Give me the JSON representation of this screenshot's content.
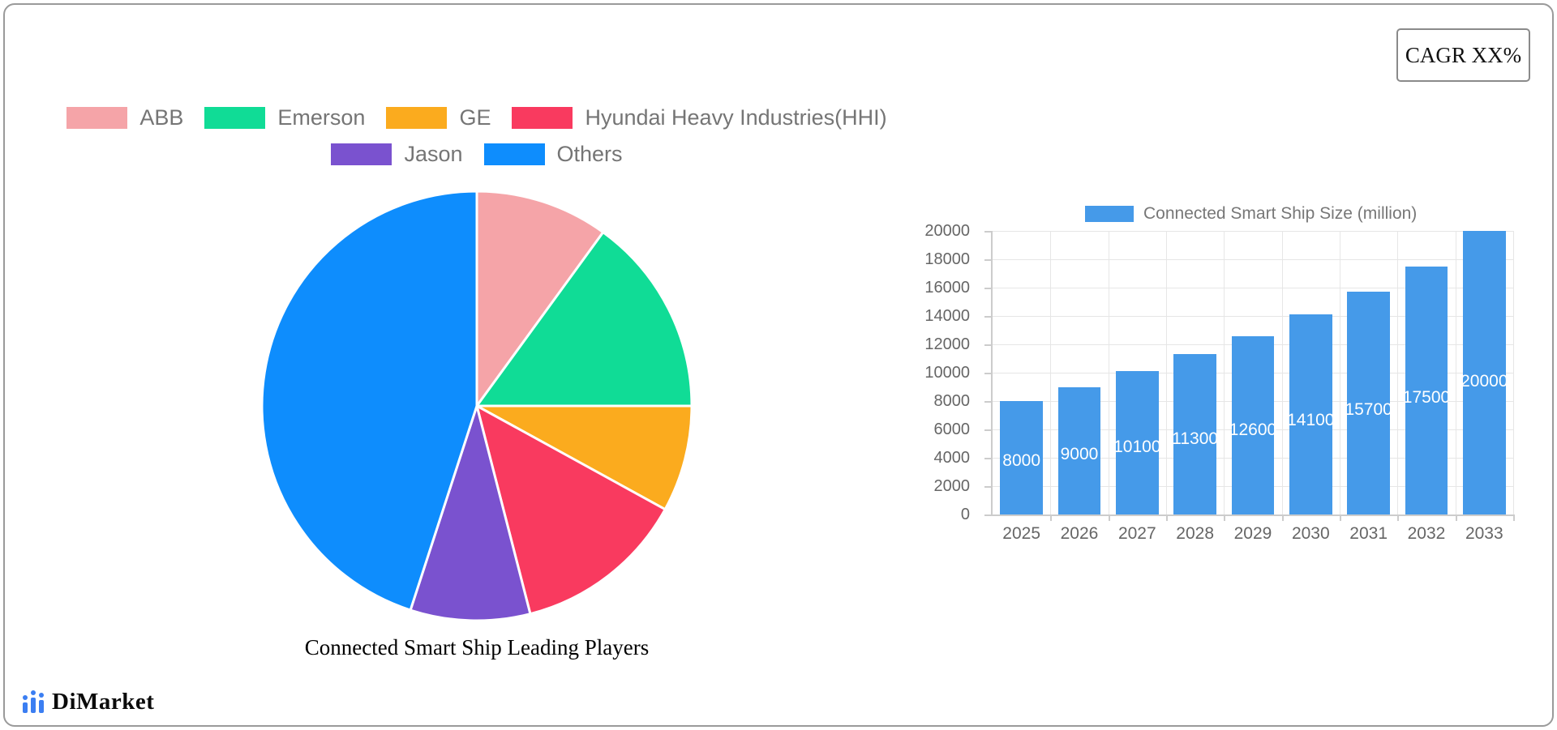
{
  "cagr_badge": "CAGR XX%",
  "brand": {
    "name": "DiMarket",
    "icon": "bar-chart-logo-icon",
    "icon_color": "#3b7ef2"
  },
  "chart_data": [
    {
      "type": "pie",
      "title": "Connected Smart Ship Leading Players",
      "legend_position": "top",
      "legend_rows": [
        [
          0,
          1,
          2,
          3
        ],
        [
          4,
          5
        ]
      ],
      "labels": [
        "ABB",
        "Emerson",
        "GE",
        "Hyundai Heavy Industries(HHI)",
        "Jason",
        "Others"
      ],
      "values": [
        10,
        15,
        8,
        13,
        9,
        45
      ],
      "colors": [
        "#f5a4a8",
        "#10dc96",
        "#fbab1e",
        "#f93a5f",
        "#7a52cf",
        "#0e8dfd"
      ],
      "start_angle_deg": 0,
      "direction": "clockwise",
      "slice_border_color": "#ffffff"
    },
    {
      "type": "bar",
      "legend": "Connected Smart Ship Size (million)",
      "legend_position": "top",
      "categories": [
        "2025",
        "2026",
        "2027",
        "2028",
        "2029",
        "2030",
        "2031",
        "2032",
        "2033"
      ],
      "values": [
        8000,
        9000,
        10100,
        11300,
        12600,
        14100,
        15700,
        17500,
        20000
      ],
      "bar_color": "#459ae9",
      "bar_label_color": "#ffffff",
      "ylim": [
        0,
        20000
      ],
      "ytick_step": 2000,
      "grid": true
    }
  ]
}
